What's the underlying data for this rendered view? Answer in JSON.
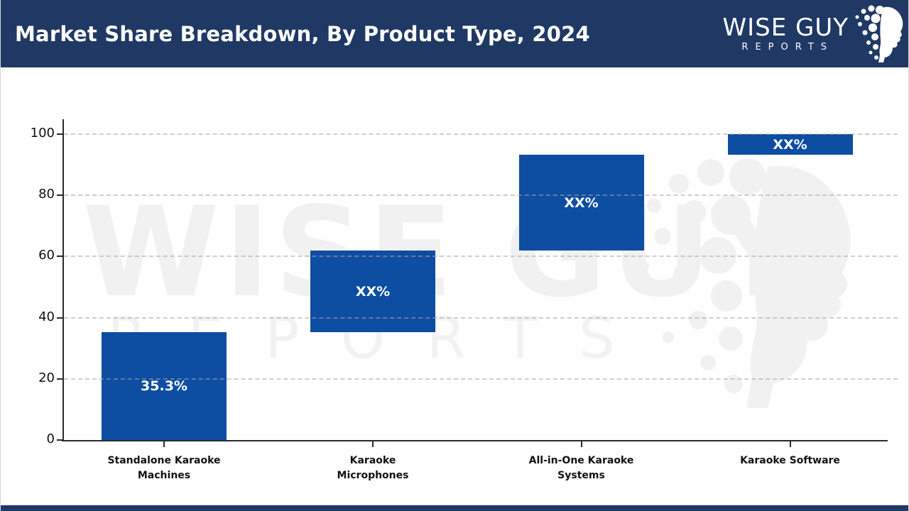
{
  "header": {
    "title": "Market Share Breakdown, By Product Type, 2024",
    "logo": {
      "line1": "WISE GUY",
      "line2": "REPORTS"
    }
  },
  "watermark": {
    "line1": "WISE GUY",
    "line2": "REPORTS"
  },
  "chart_data": {
    "type": "bar",
    "variant": "waterfall-floating-bars",
    "title": "Market Share Breakdown, By Product Type, 2024",
    "categories": [
      [
        "Standalone Karaoke",
        "Machines"
      ],
      [
        "Karaoke",
        "Microphones"
      ],
      [
        "All-in-One Karaoke",
        "Systems"
      ],
      [
        "Karaoke Software"
      ]
    ],
    "segments": [
      {
        "start": 0,
        "end": 35.3,
        "label": "35.3%"
      },
      {
        "start": 35.3,
        "end": 61.9,
        "label": "XX%"
      },
      {
        "start": 61.9,
        "end": 93.2,
        "label": "XX%"
      },
      {
        "start": 93.2,
        "end": 100,
        "label": "XX%"
      }
    ],
    "xlabel": "",
    "ylabel": "",
    "ylim": [
      0,
      100
    ],
    "yticks": [
      0,
      20,
      40,
      60,
      80,
      100
    ],
    "grid": "dashed-horizontal",
    "legend": "none",
    "bar_color": "#0d4da2",
    "bar_label_color": "#ffffff"
  },
  "colors": {
    "header_bg": "#203864",
    "footer_bg": "#203864",
    "axis": "#2b2b2b",
    "grid": "#c9c9c9",
    "watermark": "#f1f1f1"
  }
}
